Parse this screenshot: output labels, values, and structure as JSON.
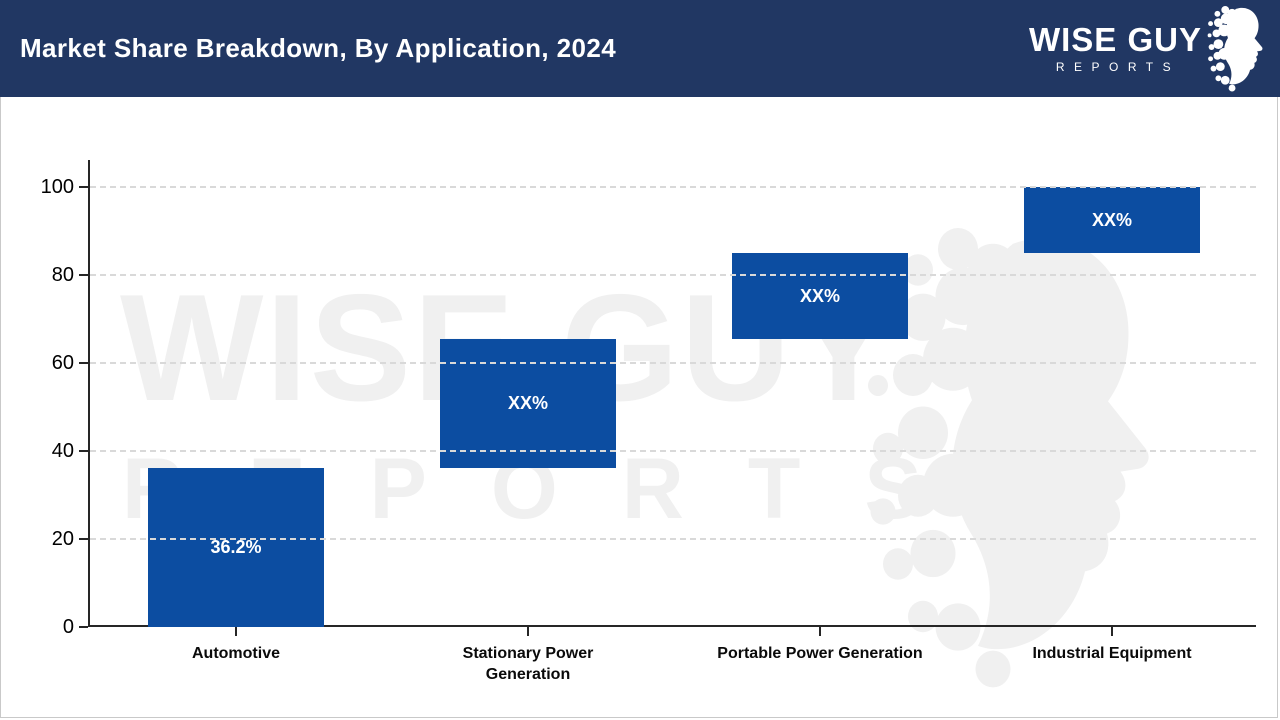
{
  "header": {
    "title": "Market Share Breakdown, By Application, 2024",
    "logo": {
      "line1": "WISE GUY",
      "line2": "REPORTS"
    }
  },
  "watermark": {
    "line1": "WISE GUY",
    "line2": "REPORTS"
  },
  "colors": {
    "header_bg": "#213763",
    "bar": "#0c4da1",
    "bar_label": "#ffffff",
    "grid": "#d9d9d9",
    "axis": "#262626",
    "watermark": "#f0f0f0"
  },
  "chart_data": {
    "type": "bar",
    "subtype": "floating-waterfall",
    "title": "Market Share Breakdown, By Application, 2024",
    "categories": [
      "Automotive",
      "Stationary Power Generation",
      "Portable Power Generation",
      "Industrial Equipment"
    ],
    "segments": [
      {
        "category": "Automotive",
        "start": 0,
        "end": 36.2,
        "label": "36.2%"
      },
      {
        "category": "Stationary Power Generation",
        "start": 36.2,
        "end": 65.5,
        "label": "XX%"
      },
      {
        "category": "Portable Power Generation",
        "start": 65.5,
        "end": 85,
        "label": "XX%"
      },
      {
        "category": "Industrial Equipment",
        "start": 85,
        "end": 100,
        "label": "XX%"
      }
    ],
    "ylim": [
      0,
      100
    ],
    "yticks": [
      0,
      20,
      40,
      60,
      80,
      100
    ],
    "xlabel": "",
    "ylabel": "",
    "grid": {
      "axis": "y",
      "style": "dashed",
      "above_bars": true
    },
    "legend": "none",
    "bar_color": "#0c4da1",
    "bar_label_color": "#ffffff"
  }
}
